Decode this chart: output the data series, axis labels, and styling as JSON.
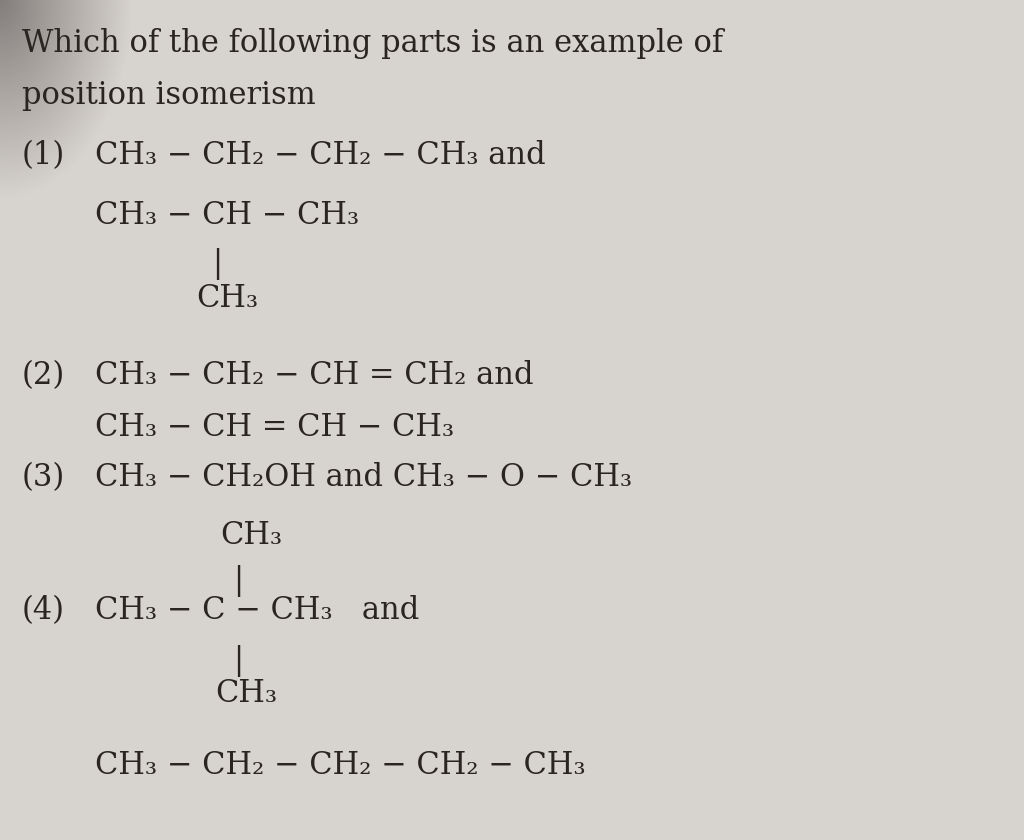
{
  "background_color_main": "#c8c4be",
  "background_color_light": "#d8d4ce",
  "shadow_color": "#4a4545",
  "title_line1": "Which of the following parts is an example of",
  "title_line2": "position isomerism",
  "text_color": "#2a2520",
  "font_size_title": 22,
  "font_size_text": 22,
  "font_family": "DejaVu Serif",
  "opt1_label": "(1)",
  "opt1_line1": "CH₃ − CH₂ − CH₂ − CH₃ and",
  "opt1_branch": "CH₃ − CH − CH₃",
  "opt1_vert": "|",
  "opt1_sub": "CH₃",
  "opt2_label": "(2)",
  "opt2_line1": "CH₃ − CH₂ − CH = CH₂ and",
  "opt2_line2": "CH₃ − CH = CH − CH₃",
  "opt3_label": "(3)",
  "opt3_line1": "CH₃ − CH₂OH and CH₃ − O − CH₃",
  "opt4_label": "(4)",
  "opt4_top": "CH₃",
  "opt4_vert1": "|",
  "opt4_main": "CH₃ − C − CH₃   and",
  "opt4_vert2": "|",
  "opt4_bot": "CH₃",
  "opt4_last": "CH₃ − CH₂ − CH₂ − CH₂ − CH₃"
}
